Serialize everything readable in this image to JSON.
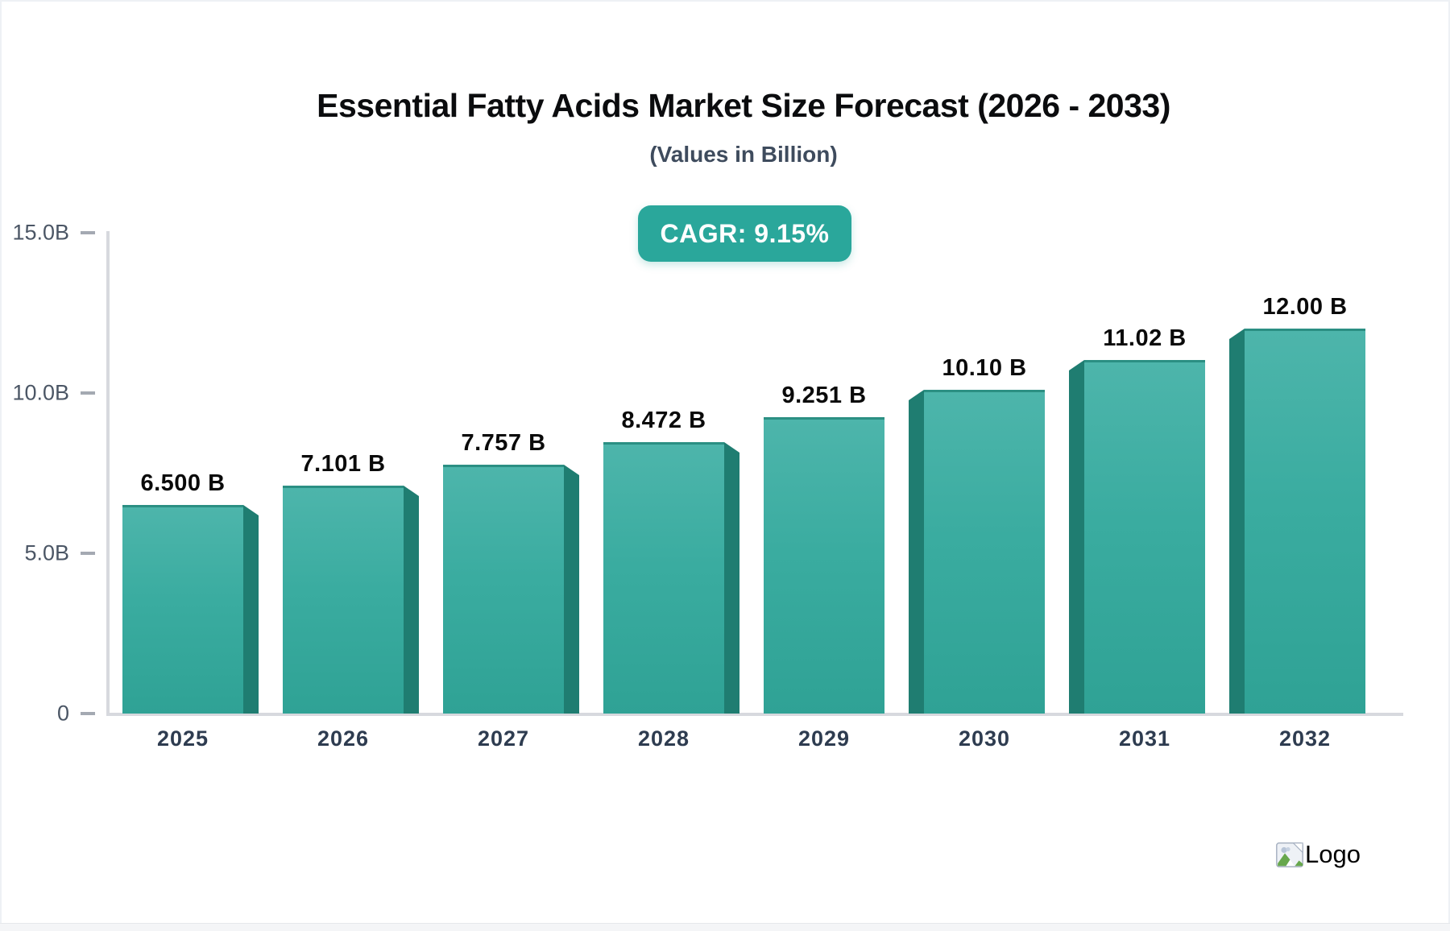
{
  "page": {
    "logo_text": "Logo"
  },
  "chart_data": {
    "type": "bar",
    "title": "Essential Fatty Acids Market Size Forecast (2026 - 2033)",
    "subtitle": "(Values in Billion)",
    "annotation": "CAGR: 9.15%",
    "categories": [
      "2025",
      "2026",
      "2027",
      "2028",
      "2029",
      "2030",
      "2031",
      "2032"
    ],
    "values": [
      6.5,
      7.101,
      7.757,
      8.472,
      9.251,
      10.1,
      11.02,
      12.0
    ],
    "value_labels": [
      "6.500 B",
      "7.101 B",
      "7.757 B",
      "8.472 B",
      "9.251 B",
      "10.10 B",
      "11.02 B",
      "12.00 B"
    ],
    "yticks": [
      {
        "label": "15.0B",
        "value": 15
      },
      {
        "label": "10.0B",
        "value": 10
      },
      {
        "label": "5.0B",
        "value": 5
      },
      {
        "label": "0",
        "value": 0
      }
    ],
    "ylim": [
      0,
      15
    ],
    "grid": false,
    "legend": "none",
    "bar_3d_side": [
      "right",
      "right",
      "right",
      "right",
      "none",
      "left",
      "left",
      "left"
    ],
    "colors": {
      "bar_face_top": "#4db5ab",
      "bar_face_bottom": "#2fa295",
      "bar_side": "#1f7d71",
      "bar_top_edge": "#2b8f83",
      "badge_bg": "#2aa79b",
      "axis_line": "#d7d9de",
      "tick_text": "#4b5665",
      "category_text": "#2e3c50",
      "title_text": "#0b0c0e",
      "subtitle_text": "#3e4b5d"
    }
  }
}
